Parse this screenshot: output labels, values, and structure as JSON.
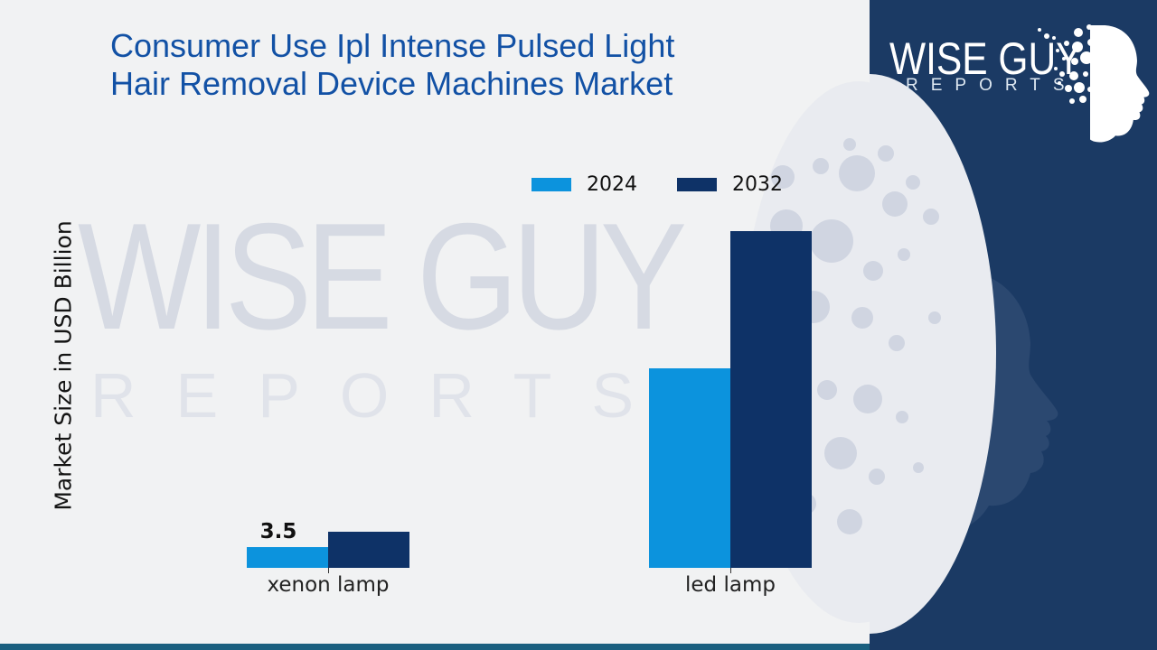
{
  "title": "Consumer Use Ipl Intense Pulsed Light Hair Removal Device Machines Market",
  "logo": {
    "brand": "WISE GUY",
    "sub": "REPORTS"
  },
  "watermark": {
    "brand": "WISE GUY",
    "sub": "REPORTS"
  },
  "chart_data": {
    "type": "bar",
    "categories": [
      "xenon lamp",
      "led lamp"
    ],
    "series": [
      {
        "name": "2024",
        "color": "#0c93dd",
        "values": [
          3.5,
          34.2
        ],
        "data_labels": [
          "3.5",
          ""
        ]
      },
      {
        "name": "2032",
        "color": "#0e3267",
        "values": [
          6.2,
          57.7
        ],
        "data_labels": [
          "",
          ""
        ]
      }
    ],
    "ylabel": "Market Size in USD Billion",
    "xlabel": "",
    "ylim": [
      0,
      62
    ],
    "grid": false,
    "value_axis_visible": false,
    "legend_position": "top-center"
  },
  "colors": {
    "title_blue": "#1251a5",
    "series_2024": "#0c93dd",
    "series_2032": "#0e3267",
    "panel_navy": "#1b3a64",
    "footer_teal": "#1a5f7f",
    "background": "#f1f2f3",
    "watermark_gray": "#d6dae3"
  }
}
